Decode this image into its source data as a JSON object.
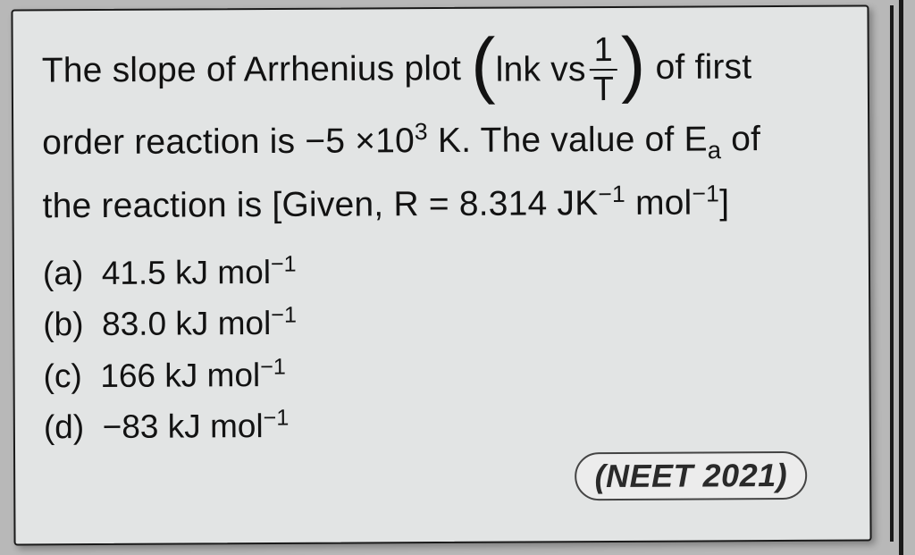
{
  "question": {
    "line1_pre": "The slope of Arrhenius plot ",
    "paren_left": "(",
    "lnk": "lnk vs",
    "frac_num": "1",
    "frac_den": "T",
    "paren_right": ")",
    "line1_post": " of first",
    "line2": "order reaction is −5 ×10",
    "line2_sup": "3",
    "line2_post": " K. The value of E",
    "line2_sub": "a",
    "line2_end": " of",
    "line3": "the reaction is [Given, R = 8.314 JK",
    "line3_sup1": "−1",
    "line3_mid": " mol",
    "line3_sup2": "−1",
    "line3_end": "]"
  },
  "options": {
    "a": {
      "label": "(a)",
      "value": "41.5 kJ mol",
      "sup": "−1"
    },
    "b": {
      "label": "(b)",
      "value": "83.0 kJ mol",
      "sup": "−1"
    },
    "c": {
      "label": "(c)",
      "value": "166 kJ mol",
      "sup": "−1"
    },
    "d": {
      "label": "(d)",
      "value": "−83 kJ mol",
      "sup": "−1"
    }
  },
  "tag": "(NEET 2021)",
  "style": {
    "page_bg": "#e2e4e4",
    "text_color": "#121212",
    "question_fontsize": 39,
    "option_fontsize": 37,
    "tag_fontsize": 36
  }
}
